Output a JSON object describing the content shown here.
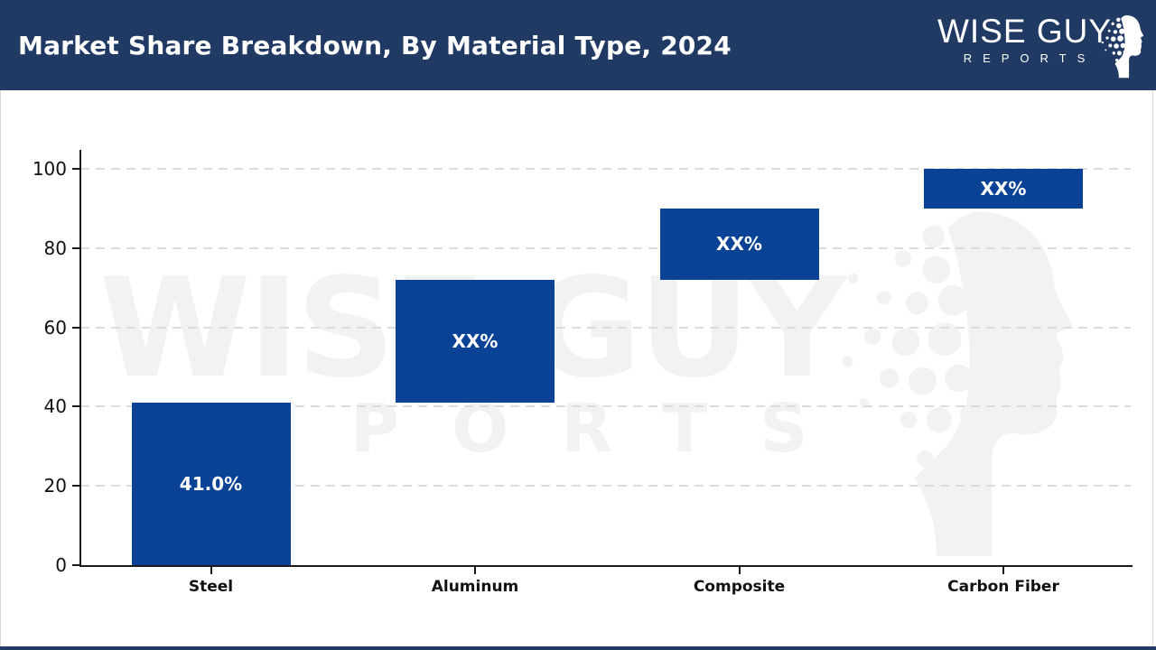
{
  "header": {
    "bg_color": "#203A64",
    "title": "Market Share Breakdown, By Material Type, 2024",
    "logo": {
      "wordmark": "WISE GUY",
      "subtext": "REPORTS"
    }
  },
  "watermark": {
    "line1": "WISE GUY",
    "line2": "PORTS"
  },
  "chart_data": {
    "type": "bar",
    "subtype": "floating-segment-waterfall",
    "title": "Market Share Breakdown, By Material Type, 2024",
    "categories": [
      "Steel",
      "Aluminum",
      "Composite",
      "Carbon Fiber"
    ],
    "segments": [
      {
        "category": "Steel",
        "start": 0,
        "end": 41,
        "value_label": "41.0%"
      },
      {
        "category": "Aluminum",
        "start": 41,
        "end": 72,
        "value_label": "XX%"
      },
      {
        "category": "Composite",
        "start": 72,
        "end": 90,
        "value_label": "XX%"
      },
      {
        "category": "Carbon Fiber",
        "start": 90,
        "end": 100,
        "value_label": "XX%"
      }
    ],
    "ylim": [
      0,
      100
    ],
    "yticks": [
      0,
      20,
      40,
      60,
      80,
      100
    ],
    "grid": "horizontal-dashed",
    "bar_color": "#0A4396",
    "bar_label_color": "#FFFFFF",
    "axis_color": "#1A1A1A",
    "gridline_color": "#DCDCDC"
  }
}
